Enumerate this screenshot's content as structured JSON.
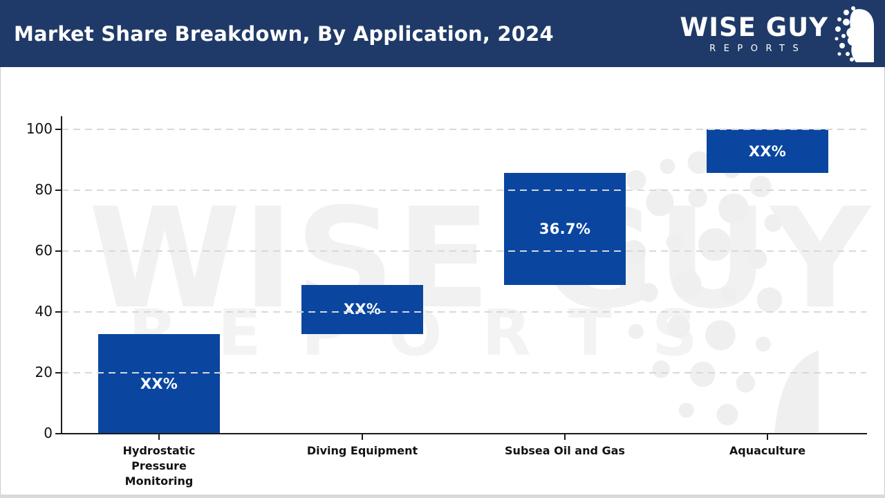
{
  "header": {
    "title": "Market Share Breakdown, By Application, 2024",
    "bg_color": "#1f3a68"
  },
  "logo": {
    "name": "WISE GUY",
    "sub": "REPORTS"
  },
  "watermark": {
    "line1": "WISE GUY",
    "line2": "REPORTS"
  },
  "chart_data": {
    "type": "bar",
    "subtype": "waterfall",
    "title": "Market Share Breakdown, By Application, 2024",
    "categories": [
      "Hydrostatic Pressure Monitoring",
      "Diving Equipment",
      "Subsea Oil and Gas",
      "Aquaculture"
    ],
    "series": [
      {
        "name": "Market Share",
        "segments": [
          {
            "category": "Hydrostatic Pressure Monitoring",
            "start": 0,
            "end": 32.7,
            "label": "XX%"
          },
          {
            "category": "Diving Equipment",
            "start": 32.7,
            "end": 48.9,
            "label": "XX%"
          },
          {
            "category": "Subsea Oil and Gas",
            "start": 48.9,
            "end": 85.6,
            "label": "36.7%"
          },
          {
            "category": "Aquaculture",
            "start": 85.6,
            "end": 100,
            "label": "XX%"
          }
        ]
      }
    ],
    "yticks": [
      0,
      20,
      40,
      60,
      80,
      100
    ],
    "ylim": [
      0,
      104
    ],
    "xlabel": "",
    "ylabel": "",
    "grid": "horizontal-dashed",
    "legend": "none",
    "bar_color": "#0a46a0",
    "bar_label_color": "#ffffff"
  }
}
